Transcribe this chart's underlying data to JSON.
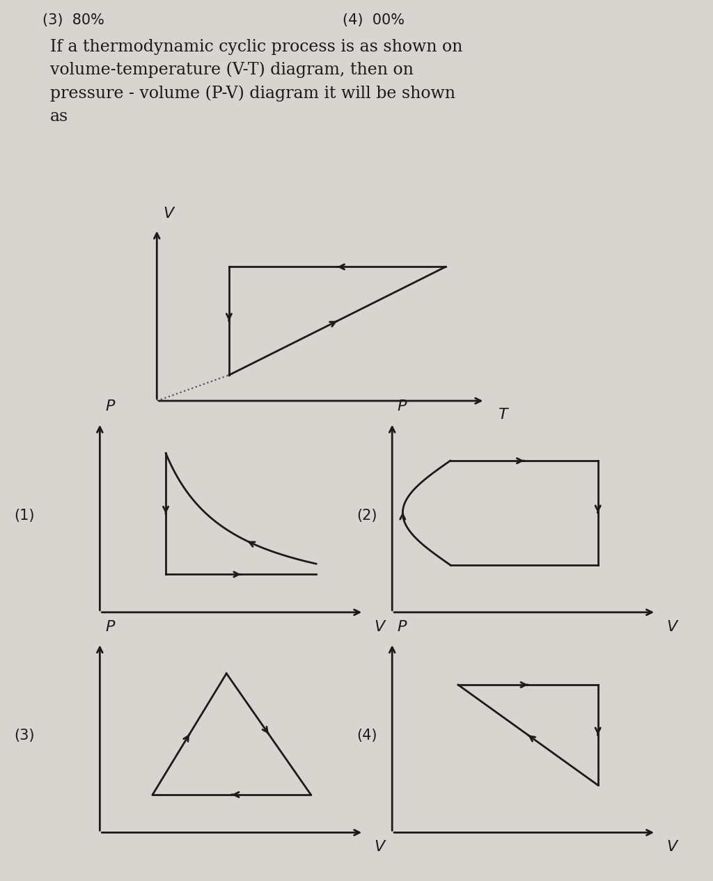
{
  "bg_color": "#d8d4cf",
  "line_color": "#1a1a1a",
  "arrow_color": "#1a1a1a",
  "label_fontsize": 16,
  "number_fontsize": 15,
  "title_fontsize": 17,
  "top_text1": "(3)  80%",
  "top_text2": "(4)  00%",
  "title_line1": "If a thermodynamic cyclic process is as shown on",
  "title_line2": "volume-temperature (V-T) diagram, then on",
  "title_line3": "pressure - volume (P-V) diagram it will be shown",
  "title_line4": "as"
}
